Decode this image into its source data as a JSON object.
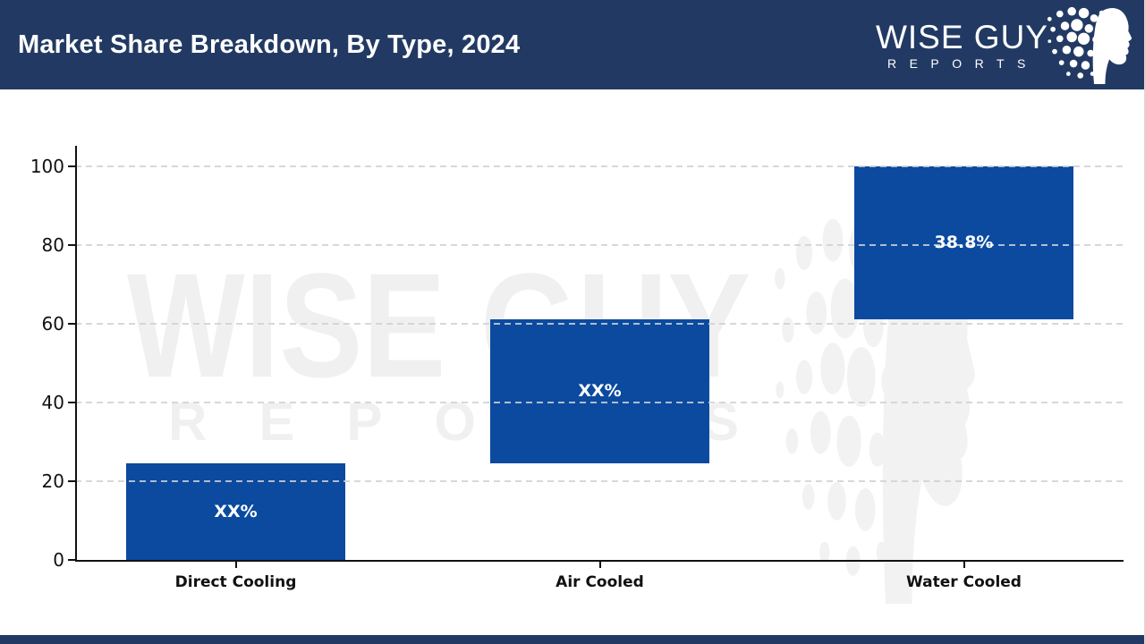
{
  "header": {
    "title": "Market Share Breakdown, By Type, 2024",
    "logo": {
      "line1": "WISE GUY",
      "line2": "REPORTS"
    }
  },
  "watermark": {
    "line1": "WISE GUY",
    "line2": "REPORTS"
  },
  "colors": {
    "header_bg": "#223A63",
    "footer_bg": "#223A63",
    "bar": "#0B4A9F",
    "grid": "#D9D9D9",
    "axis": "#111111",
    "bar_label": "#FFFFFF",
    "watermark": "#F0F0F0",
    "title_text": "#FFFFFF"
  },
  "chart_data": {
    "type": "bar",
    "subtype": "floating-cumulative-bars",
    "title": "Market Share Breakdown, By Type, 2024",
    "categories": [
      "Direct Cooling",
      "Air Cooled",
      "Water Cooled"
    ],
    "segments": [
      {
        "category": "Direct Cooling",
        "start": 0,
        "end": 24.5,
        "size": 24.5,
        "label": "XX%"
      },
      {
        "category": "Air Cooled",
        "start": 24.5,
        "end": 61.2,
        "size": 36.7,
        "label": "XX%"
      },
      {
        "category": "Water Cooled",
        "start": 61.2,
        "end": 100,
        "size": 38.8,
        "label": "38.8%"
      }
    ],
    "xlabel": "",
    "ylabel": "",
    "ylim": [
      0,
      100
    ],
    "yticks": [
      0,
      20,
      40,
      60,
      80,
      100
    ],
    "grid": "horizontal-dashed",
    "grid_above_bars": true,
    "legend": "none",
    "bar_labels_inside": true
  }
}
